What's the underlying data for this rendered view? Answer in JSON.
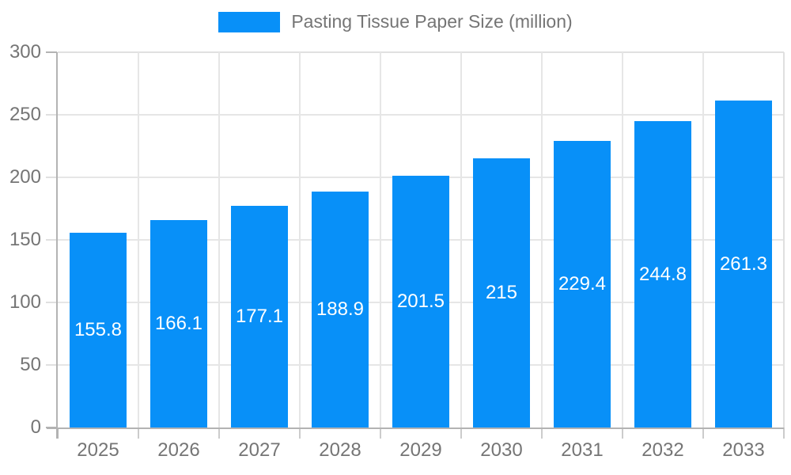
{
  "legend": {
    "items": [
      {
        "label": "Pasting Tissue Paper Size (million)",
        "color": "#0890f8"
      }
    ]
  },
  "chart_data": {
    "type": "bar",
    "title": "Pasting Tissue Paper Size (million)",
    "categories": [
      "2025",
      "2026",
      "2027",
      "2028",
      "2029",
      "2030",
      "2031",
      "2032",
      "2033"
    ],
    "series": [
      {
        "name": "Pasting Tissue Paper Size (million)",
        "color": "#0890f8",
        "values": [
          155.8,
          166.1,
          177.1,
          188.9,
          201.5,
          215,
          229.4,
          244.8,
          261.3
        ]
      }
    ],
    "value_labels": [
      "155.8",
      "166.1",
      "177.1",
      "188.9",
      "201.5",
      "215",
      "229.4",
      "244.8",
      "261.3"
    ],
    "xlabel": "",
    "ylabel": "",
    "ylim": [
      0,
      300
    ],
    "yticks": [
      0,
      50,
      100,
      150,
      200,
      250,
      300
    ],
    "grid": true,
    "legend_position": "top"
  },
  "colors": {
    "bar": "#0890f8",
    "bar_value_text": "#ffffff",
    "axis_line": "#b3b3b3",
    "grid_line": "#e6e6e6",
    "grid_edge": "#e0e0e0",
    "tick_x": "#cccccc",
    "tick_y": "#e0e0e0",
    "label_text": "#757575",
    "background": "#ffffff"
  }
}
